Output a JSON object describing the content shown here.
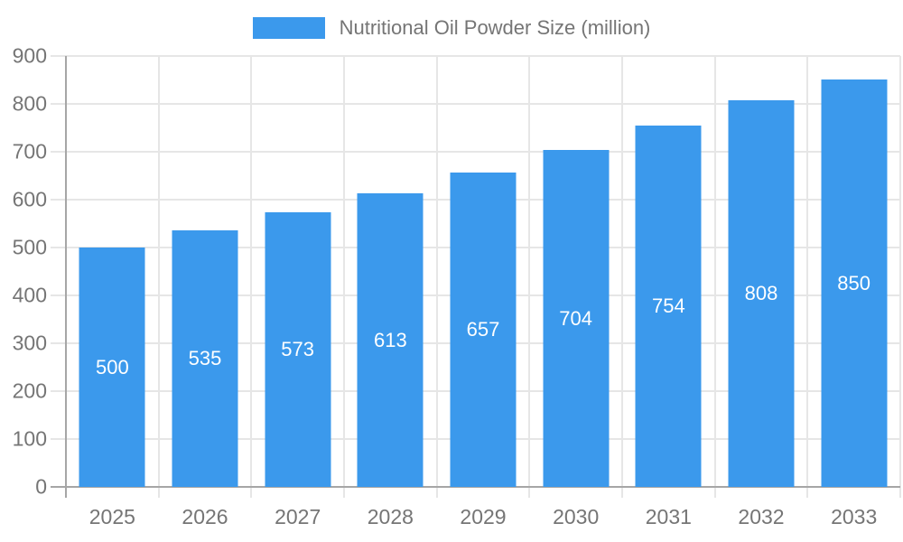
{
  "chart_data": {
    "type": "bar",
    "title": "Nutritional Oil Powder Size (million)",
    "categories": [
      "2025",
      "2026",
      "2027",
      "2028",
      "2029",
      "2030",
      "2031",
      "2032",
      "2033"
    ],
    "series": [
      {
        "name": "Nutritional Oil Powder Size (million)",
        "values": [
          500,
          535,
          573,
          613,
          657,
          704,
          754,
          808,
          850
        ]
      }
    ],
    "xlabel": "",
    "ylabel": "",
    "ylim": [
      0,
      900
    ],
    "y_ticks": [
      0,
      100,
      200,
      300,
      400,
      500,
      600,
      700,
      800,
      900
    ],
    "grid": "horizontal and vertical gridlines on",
    "legend_position": "top-center",
    "bar_value_labels": "white, centered inside bars",
    "colors": {
      "bar": "#3b99ec",
      "axis_line": "#a6a6a6",
      "gridline": "#e6e6e6",
      "tick_text": "#757575",
      "bar_label_text": "#ffffff",
      "background": "#ffffff"
    }
  }
}
